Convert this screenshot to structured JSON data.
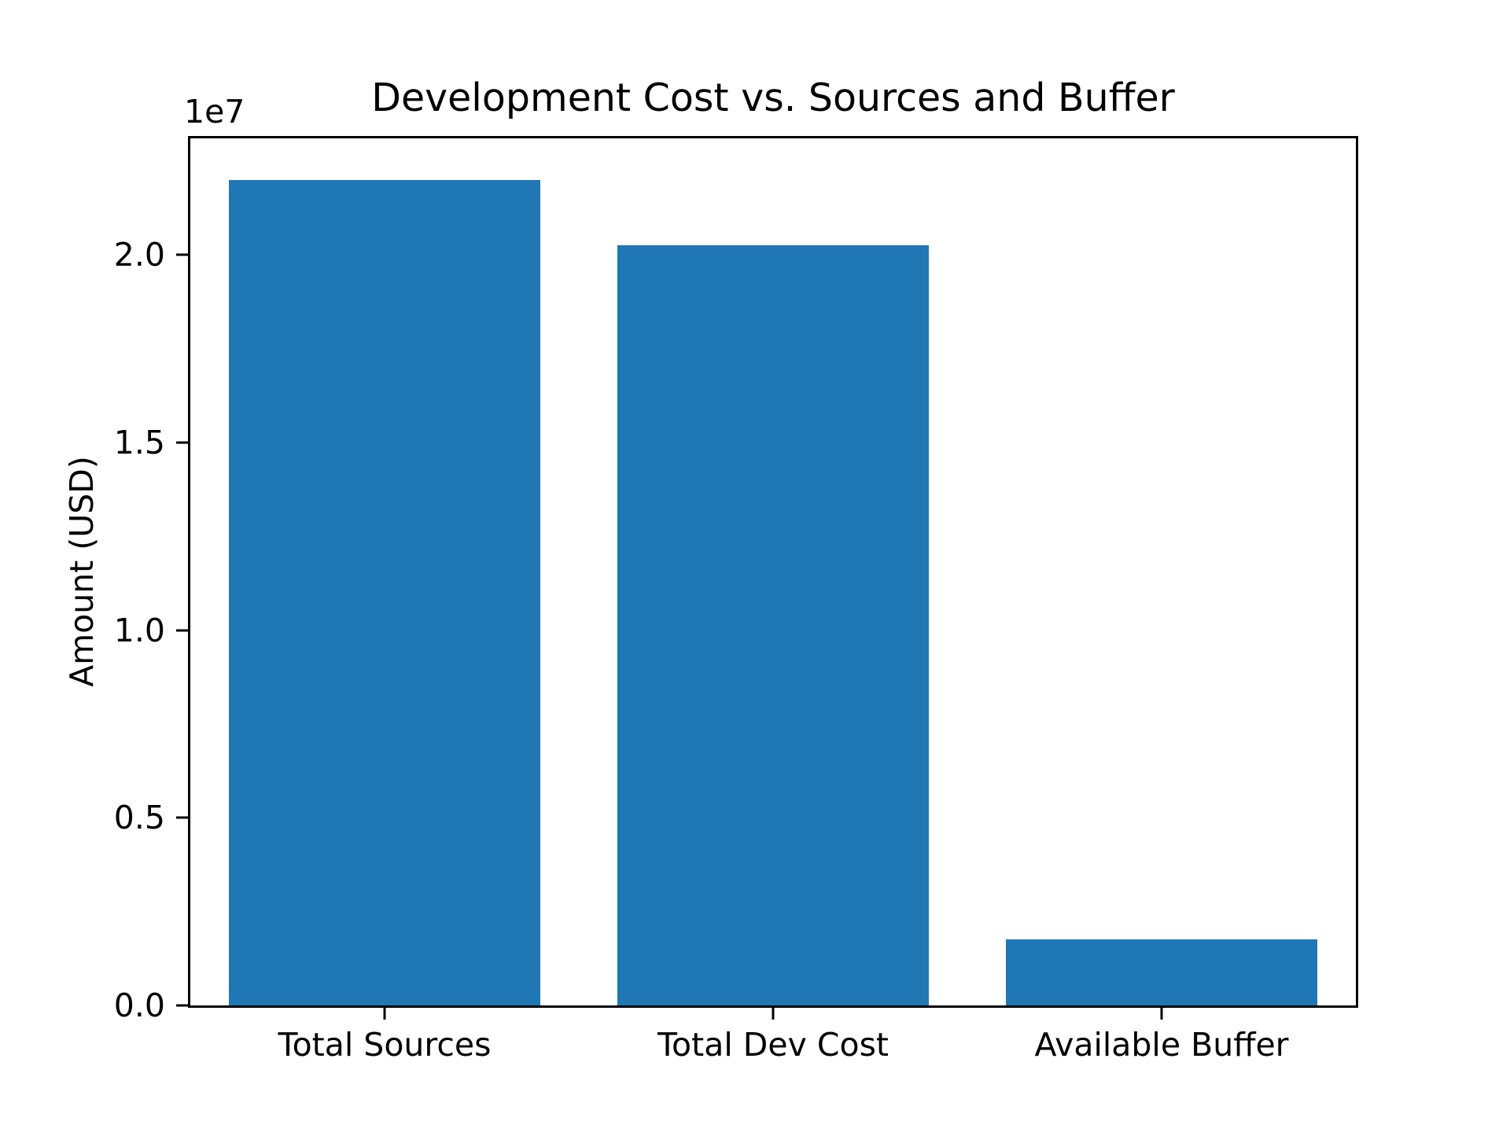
{
  "chart_data": {
    "type": "bar",
    "title": "Development Cost vs. Sources and Buffer",
    "categories": [
      "Total Sources",
      "Total Dev Cost",
      "Available Buffer"
    ],
    "values": [
      22000000,
      20250000,
      1750000
    ],
    "xlabel": "",
    "ylabel": "Amount (USD)",
    "ylim": [
      0,
      23100000
    ],
    "y_scale_label": "1e7",
    "y_multiplier": 10000000,
    "yticks": [
      0.0,
      0.5,
      1.0,
      1.5,
      2.0
    ],
    "ytick_labels": [
      "0.0",
      "0.5",
      "1.0",
      "1.5",
      "2.0"
    ],
    "bar_color": "#1f77b4",
    "bar_width_fraction": 0.8,
    "grid": false,
    "legend": null,
    "background_color": "#ffffff",
    "text_color": "#000000"
  }
}
